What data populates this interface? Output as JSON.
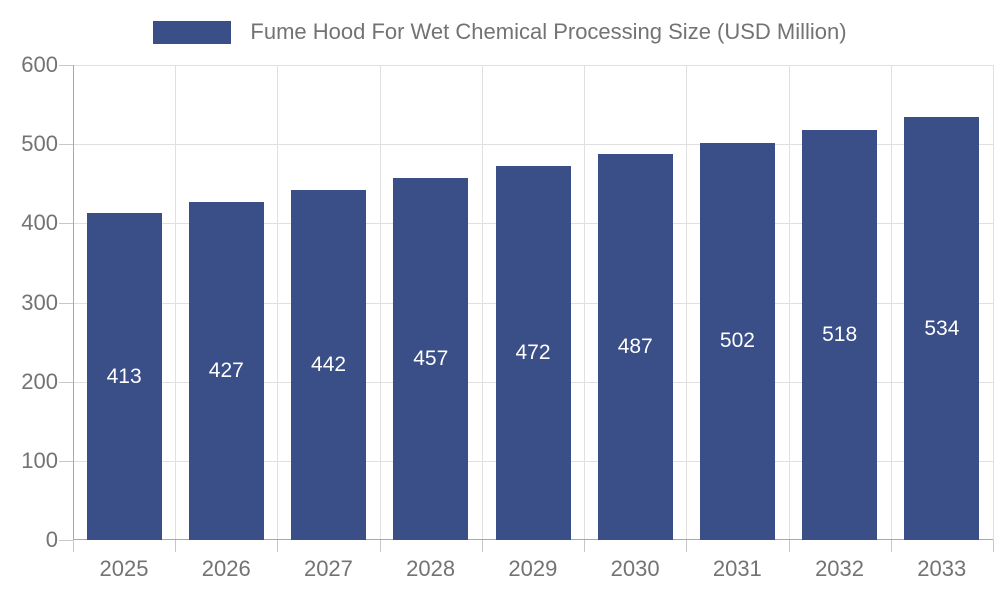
{
  "chart_data": {
    "type": "bar",
    "title": "Fume Hood For Wet Chemical Processing Size (USD Million)",
    "categories": [
      "2025",
      "2026",
      "2027",
      "2028",
      "2029",
      "2030",
      "2031",
      "2032",
      "2033"
    ],
    "values": [
      413,
      427,
      442,
      457,
      472,
      487,
      502,
      518,
      534
    ],
    "xlabel": "",
    "ylabel": "",
    "ylim": [
      0,
      600
    ],
    "yticks": [
      0,
      100,
      200,
      300,
      400,
      500,
      600
    ],
    "grid": true,
    "legend_position": "top-center",
    "value_labels": "inside-center",
    "colors": {
      "bar": "#3a4e87",
      "bar_value_text": "#ffffff",
      "axis_text": "#737373",
      "gridline": "#e0e0e0",
      "axis_line": "#a8a8a8",
      "background": "#ffffff"
    }
  }
}
